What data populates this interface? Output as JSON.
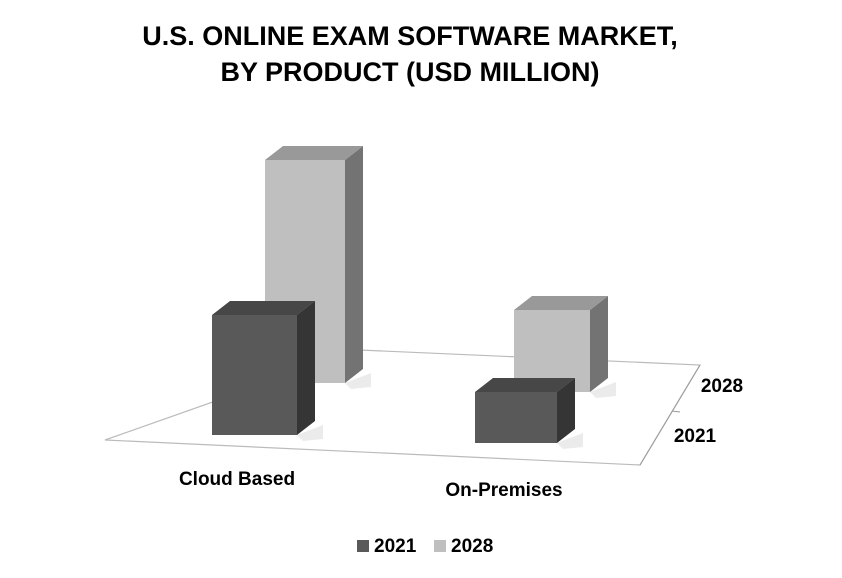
{
  "chart_data": {
    "type": "bar3d",
    "title": "U.S. ONLINE EXAM SOFTWARE MARKET,",
    "subtitle": "BY PRODUCT (USD MILLION)",
    "categories": [
      "Cloud Based",
      "On-Premises"
    ],
    "series": [
      {
        "name": "2021",
        "color": "#595959",
        "values": [
          120,
          51
        ]
      },
      {
        "name": "2028",
        "color": "#bfbfbf",
        "values": [
          223,
          82
        ]
      }
    ]
  }
}
